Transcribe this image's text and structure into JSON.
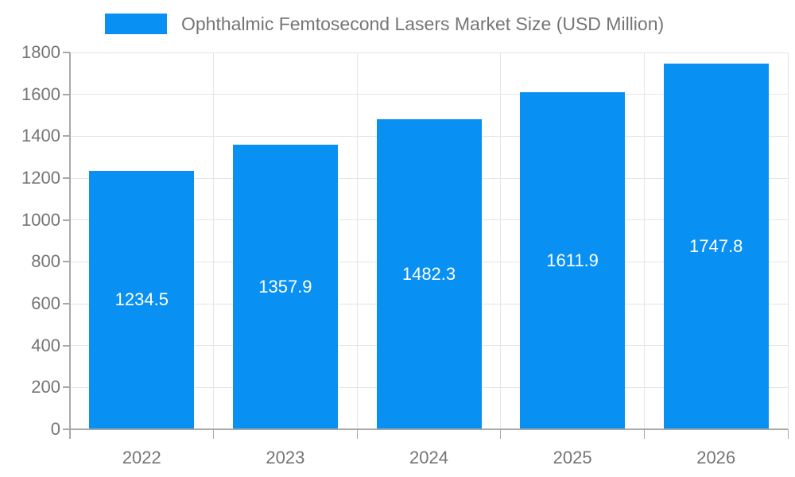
{
  "legend": {
    "label": "Ophthalmic Femtosecond Lasers Market Size (USD Million)"
  },
  "chart_data": {
    "type": "bar",
    "title": "Ophthalmic Femtosecond Lasers Market Size (USD Million)",
    "series_name": "Ophthalmic Femtosecond Lasers Market Size (USD Million)",
    "categories": [
      "2022",
      "2023",
      "2024",
      "2025",
      "2026"
    ],
    "values": [
      1234.5,
      1357.9,
      1482.3,
      1611.9,
      1747.8
    ],
    "value_labels": [
      "1234.5",
      "1357.9",
      "1482.3",
      "1611.9",
      "1747.8"
    ],
    "xlabel": "",
    "ylabel": "",
    "ylim": [
      0,
      1800
    ],
    "ytick_step": 200,
    "y_tick_labels": [
      "0",
      "200",
      "400",
      "600",
      "800",
      "1000",
      "1200",
      "1400",
      "1600",
      "1800"
    ],
    "grid": true,
    "legend_position": "top",
    "colors": {
      "bar": "#0890f2",
      "grid": "#e5e5e5",
      "axis": "#a8a8a8",
      "tick_label": "#757575",
      "value_label": "#ffffff",
      "legend_text": "#757575"
    }
  }
}
